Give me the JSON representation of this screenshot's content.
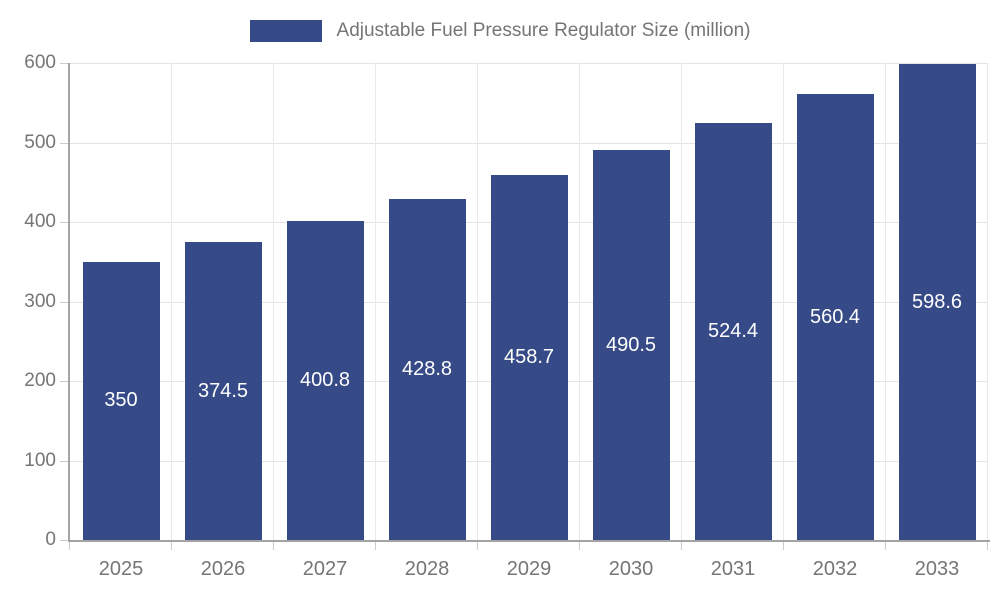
{
  "legend": {
    "label": "Adjustable Fuel Pressure Regulator Size (million)"
  },
  "colors": {
    "bar": "#364a87",
    "bar_label_text": "#ffffff",
    "axis_line": "#a3a3a3",
    "gridline": "#e4e4e4",
    "tick_mark": "#c7cbd3",
    "axis_text": "#757575",
    "background": "#ffffff"
  },
  "chart_data": {
    "type": "bar",
    "title": "",
    "xlabel": "",
    "ylabel": "",
    "series_name": "Adjustable Fuel Pressure Regulator Size (million)",
    "categories": [
      "2025",
      "2026",
      "2027",
      "2028",
      "2029",
      "2030",
      "2031",
      "2032",
      "2033"
    ],
    "values": [
      350,
      374.5,
      400.8,
      428.8,
      458.7,
      490.5,
      524.4,
      560.4,
      598.6
    ],
    "bar_labels": [
      "350",
      "374.5",
      "400.8",
      "428.8",
      "458.7",
      "490.5",
      "524.4",
      "560.4",
      "598.6"
    ],
    "bar_label_position": "middle",
    "ylim": [
      0,
      600
    ],
    "yticks": [
      0,
      100,
      200,
      300,
      400,
      500,
      600
    ],
    "grid": true,
    "legend_position": "top-center"
  }
}
